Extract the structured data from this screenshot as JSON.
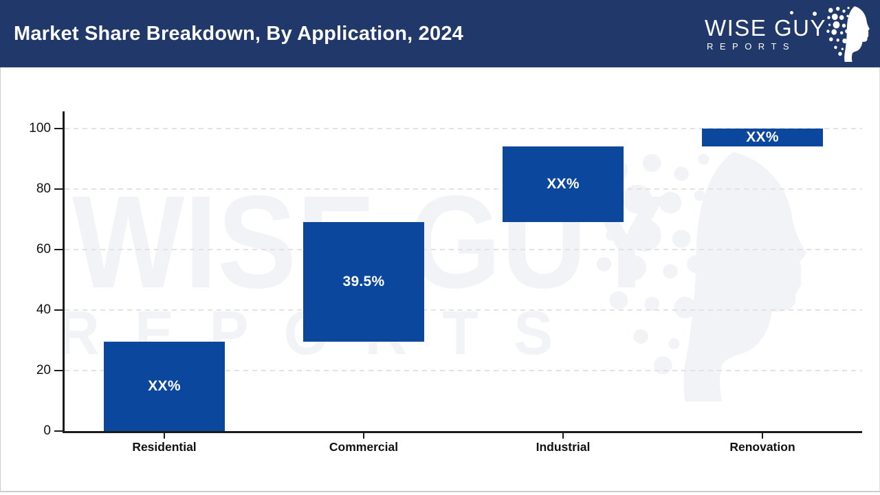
{
  "header": {
    "title": "Market Share Breakdown, By Application, 2024",
    "logo": {
      "line1": "WISE GUY",
      "line2": "REPORTS"
    }
  },
  "watermark": {
    "line1": "WISE GUY",
    "line2": "REPORTS"
  },
  "colors": {
    "header_bg": "#20386a",
    "bar": "#0c479e",
    "bar_label": "#ffffff",
    "grid": "#e2e2e2",
    "axis": "#1a1a1a",
    "text": "#111111",
    "watermark": "#f2f3f6"
  },
  "chart_data": {
    "type": "bar",
    "subtype": "waterfall",
    "title": "Market Share Breakdown, By Application, 2024",
    "categories": [
      "Residential",
      "Commercial",
      "Industrial",
      "Renovation"
    ],
    "bars": [
      {
        "category": "Residential",
        "start": 0,
        "end": 29.5,
        "label": "XX%"
      },
      {
        "category": "Commercial",
        "start": 29.5,
        "end": 69,
        "label": "39.5%"
      },
      {
        "category": "Industrial",
        "start": 69,
        "end": 94,
        "label": "XX%"
      },
      {
        "category": "Renovation",
        "start": 94,
        "end": 100,
        "label": "XX%"
      }
    ],
    "yticks": [
      0,
      20,
      40,
      60,
      80,
      100
    ],
    "ylim": [
      0,
      106
    ],
    "xlabel": "",
    "ylabel": "",
    "grid": "horizontal-dashed",
    "legend": "none"
  }
}
